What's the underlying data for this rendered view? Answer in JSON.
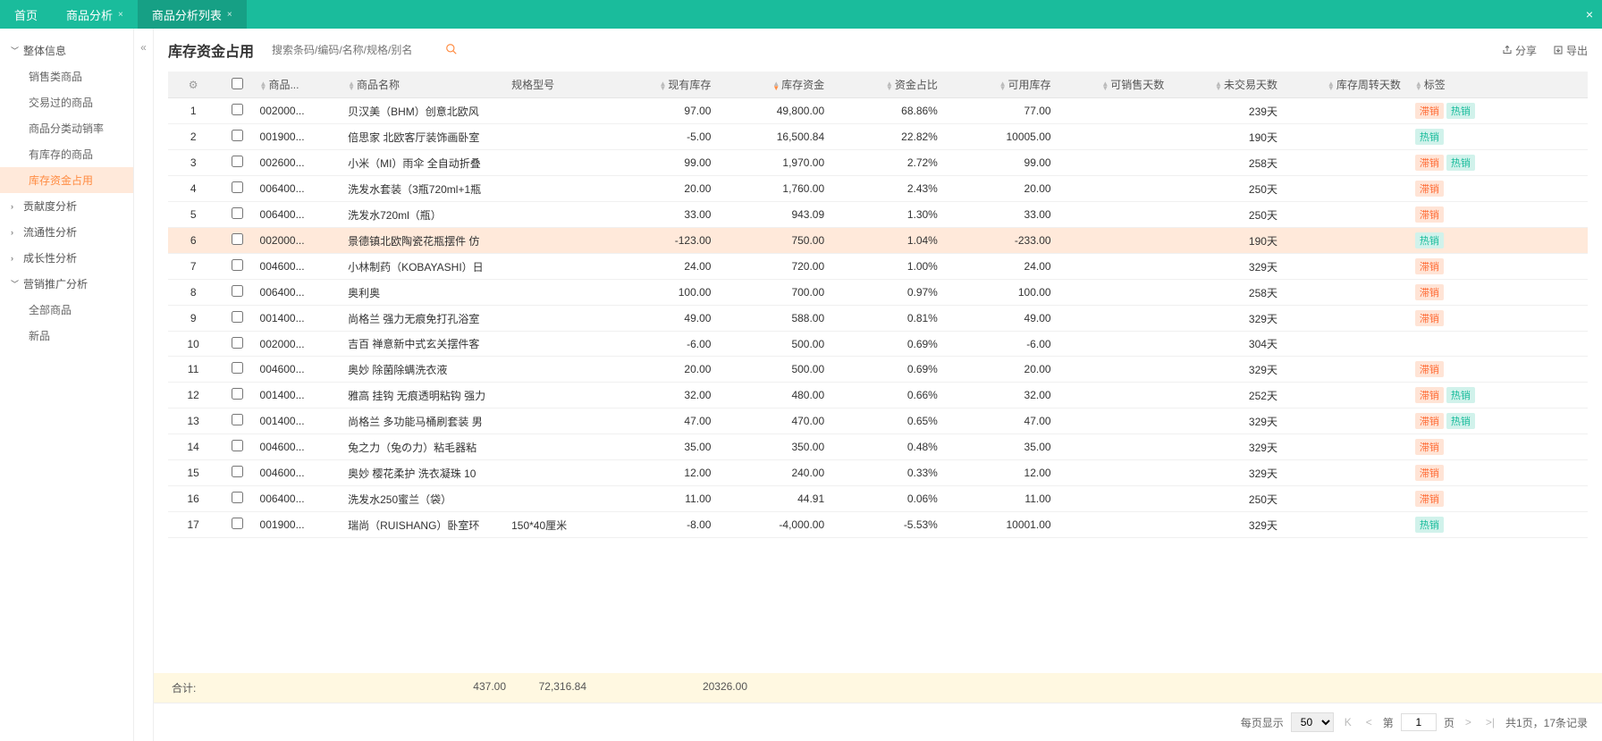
{
  "tabs": [
    {
      "label": "首页",
      "closable": false,
      "active": false
    },
    {
      "label": "商品分析",
      "closable": true,
      "active": false
    },
    {
      "label": "商品分析列表",
      "closable": true,
      "active": true
    }
  ],
  "sidebar": {
    "groups": [
      {
        "label": "整体信息",
        "expanded": true,
        "items": [
          {
            "label": "销售类商品",
            "selected": false
          },
          {
            "label": "交易过的商品",
            "selected": false
          },
          {
            "label": "商品分类动销率",
            "selected": false
          },
          {
            "label": "有库存的商品",
            "selected": false
          },
          {
            "label": "库存资金占用",
            "selected": true
          }
        ]
      },
      {
        "label": "贡献度分析",
        "expanded": false,
        "items": []
      },
      {
        "label": "流通性分析",
        "expanded": false,
        "items": []
      },
      {
        "label": "成长性分析",
        "expanded": false,
        "items": []
      },
      {
        "label": "营销推广分析",
        "expanded": true,
        "items": [
          {
            "label": "全部商品",
            "selected": false
          },
          {
            "label": "新品",
            "selected": false
          }
        ]
      }
    ]
  },
  "page": {
    "title": "库存资金占用",
    "search_placeholder": "搜索条码/编码/名称/规格/别名",
    "share_label": "分享",
    "export_label": "导出"
  },
  "columns": {
    "c_code": "商品...",
    "c_name": "商品名称",
    "c_spec": "规格型号",
    "c_stock": "现有库存",
    "c_fund": "库存资金",
    "c_pct": "资金占比",
    "c_avail": "可用库存",
    "c_saledays": "可销售天数",
    "c_notrade": "未交易天数",
    "c_turnover": "库存周转天数",
    "c_tag": "标签"
  },
  "tags": {
    "slow": "滞销",
    "hot": "热销"
  },
  "rows": [
    {
      "idx": 1,
      "code": "002000...",
      "name": "贝汉美（BHM）创意北欧风",
      "spec": "",
      "stock": "97.00",
      "fund": "49,800.00",
      "pct": "68.86%",
      "avail": "77.00",
      "saledays": "",
      "notrade": "239天",
      "turnover": "",
      "tags": [
        "slow",
        "hot"
      ],
      "hl": false
    },
    {
      "idx": 2,
      "code": "001900...",
      "name": "倍思家 北欧客厅装饰画卧室",
      "spec": "",
      "stock": "-5.00",
      "fund": "16,500.84",
      "pct": "22.82%",
      "avail": "10005.00",
      "saledays": "",
      "notrade": "190天",
      "turnover": "",
      "tags": [
        "hot"
      ],
      "hl": false
    },
    {
      "idx": 3,
      "code": "002600...",
      "name": "小米（MI）雨伞 全自动折叠",
      "spec": "",
      "stock": "99.00",
      "fund": "1,970.00",
      "pct": "2.72%",
      "avail": "99.00",
      "saledays": "",
      "notrade": "258天",
      "turnover": "",
      "tags": [
        "slow",
        "hot"
      ],
      "hl": false
    },
    {
      "idx": 4,
      "code": "006400...",
      "name": "洗发水套装（3瓶720ml+1瓶",
      "spec": "",
      "stock": "20.00",
      "fund": "1,760.00",
      "pct": "2.43%",
      "avail": "20.00",
      "saledays": "",
      "notrade": "250天",
      "turnover": "",
      "tags": [
        "slow"
      ],
      "hl": false
    },
    {
      "idx": 5,
      "code": "006400...",
      "name": "洗发水720ml（瓶）",
      "spec": "",
      "stock": "33.00",
      "fund": "943.09",
      "pct": "1.30%",
      "avail": "33.00",
      "saledays": "",
      "notrade": "250天",
      "turnover": "",
      "tags": [
        "slow"
      ],
      "hl": false
    },
    {
      "idx": 6,
      "code": "002000...",
      "name": "景德镇北欧陶瓷花瓶摆件 仿",
      "spec": "",
      "stock": "-123.00",
      "fund": "750.00",
      "pct": "1.04%",
      "avail": "-233.00",
      "saledays": "",
      "notrade": "190天",
      "turnover": "",
      "tags": [
        "hot"
      ],
      "hl": true
    },
    {
      "idx": 7,
      "code": "004600...",
      "name": "小林制药（KOBAYASHI）日",
      "spec": "",
      "stock": "24.00",
      "fund": "720.00",
      "pct": "1.00%",
      "avail": "24.00",
      "saledays": "",
      "notrade": "329天",
      "turnover": "",
      "tags": [
        "slow"
      ],
      "hl": false
    },
    {
      "idx": 8,
      "code": "006400...",
      "name": "奥利奥",
      "spec": "",
      "stock": "100.00",
      "fund": "700.00",
      "pct": "0.97%",
      "avail": "100.00",
      "saledays": "",
      "notrade": "258天",
      "turnover": "",
      "tags": [
        "slow"
      ],
      "hl": false
    },
    {
      "idx": 9,
      "code": "001400...",
      "name": "尚格兰 强力无痕免打孔浴室",
      "spec": "",
      "stock": "49.00",
      "fund": "588.00",
      "pct": "0.81%",
      "avail": "49.00",
      "saledays": "",
      "notrade": "329天",
      "turnover": "",
      "tags": [
        "slow"
      ],
      "hl": false
    },
    {
      "idx": 10,
      "code": "002000...",
      "name": "吉百 禅意新中式玄关摆件客",
      "spec": "",
      "stock": "-6.00",
      "fund": "500.00",
      "pct": "0.69%",
      "avail": "-6.00",
      "saledays": "",
      "notrade": "304天",
      "turnover": "",
      "tags": [],
      "hl": false
    },
    {
      "idx": 11,
      "code": "004600...",
      "name": "奥妙 除菌除螨洗衣液",
      "spec": "",
      "stock": "20.00",
      "fund": "500.00",
      "pct": "0.69%",
      "avail": "20.00",
      "saledays": "",
      "notrade": "329天",
      "turnover": "",
      "tags": [
        "slow"
      ],
      "hl": false
    },
    {
      "idx": 12,
      "code": "001400...",
      "name": "雅高 挂钩 无痕透明粘钩 强力",
      "spec": "",
      "stock": "32.00",
      "fund": "480.00",
      "pct": "0.66%",
      "avail": "32.00",
      "saledays": "",
      "notrade": "252天",
      "turnover": "",
      "tags": [
        "slow",
        "hot"
      ],
      "hl": false
    },
    {
      "idx": 13,
      "code": "001400...",
      "name": "尚格兰 多功能马桶刷套装 男",
      "spec": "",
      "stock": "47.00",
      "fund": "470.00",
      "pct": "0.65%",
      "avail": "47.00",
      "saledays": "",
      "notrade": "329天",
      "turnover": "",
      "tags": [
        "slow",
        "hot"
      ],
      "hl": false
    },
    {
      "idx": 14,
      "code": "004600...",
      "name": "兔之力（兔の力）粘毛器粘",
      "spec": "",
      "stock": "35.00",
      "fund": "350.00",
      "pct": "0.48%",
      "avail": "35.00",
      "saledays": "",
      "notrade": "329天",
      "turnover": "",
      "tags": [
        "slow"
      ],
      "hl": false
    },
    {
      "idx": 15,
      "code": "004600...",
      "name": "奥妙 樱花柔护 洗衣凝珠 10",
      "spec": "",
      "stock": "12.00",
      "fund": "240.00",
      "pct": "0.33%",
      "avail": "12.00",
      "saledays": "",
      "notrade": "329天",
      "turnover": "",
      "tags": [
        "slow"
      ],
      "hl": false
    },
    {
      "idx": 16,
      "code": "006400...",
      "name": "洗发水250蜜兰（袋）",
      "spec": "",
      "stock": "11.00",
      "fund": "44.91",
      "pct": "0.06%",
      "avail": "11.00",
      "saledays": "",
      "notrade": "250天",
      "turnover": "",
      "tags": [
        "slow"
      ],
      "hl": false
    },
    {
      "idx": 17,
      "code": "001900...",
      "name": "瑞尚（RUISHANG）卧室环",
      "spec": "150*40厘米",
      "stock": "-8.00",
      "fund": "-4,000.00",
      "pct": "-5.53%",
      "avail": "10001.00",
      "saledays": "",
      "notrade": "329天",
      "turnover": "",
      "tags": [
        "hot"
      ],
      "hl": false
    }
  ],
  "footer": {
    "label": "合计:",
    "stock": "437.00",
    "fund": "72,316.84",
    "avail": "20326.00"
  },
  "pager": {
    "per_page_label": "每页显示",
    "per_page": "50",
    "page_prefix": "第",
    "page": "1",
    "page_suffix": "页",
    "summary": "共1页，17条记录"
  }
}
